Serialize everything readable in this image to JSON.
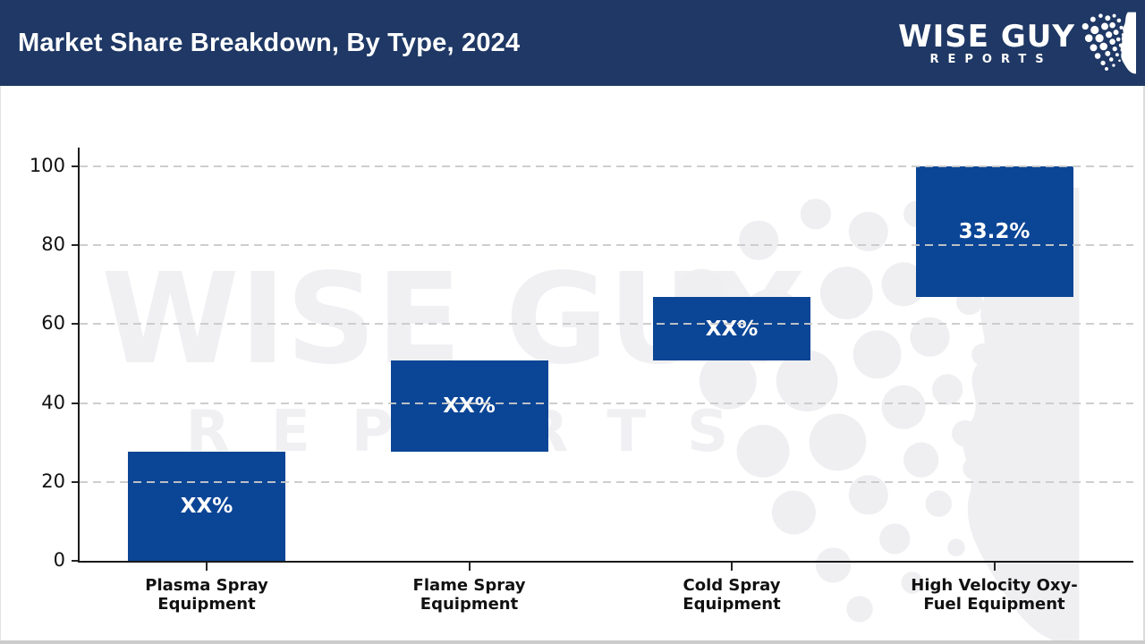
{
  "header": {
    "title": "Market Share Breakdown, By Type, 2024",
    "logo": {
      "line1": "WISE GUY",
      "line2": "REPORTS"
    }
  },
  "watermark": {
    "line1": "WISE GUY",
    "line2": "REPORTS"
  },
  "chart_data": {
    "type": "bar",
    "variant": "waterfall",
    "title": "Market Share Breakdown, By Type, 2024",
    "categories": [
      "Plasma Spray Equipment",
      "Flame Spray Equipment",
      "Cold Spray Equipment",
      "High Velocity Oxy-Fuel Equipment"
    ],
    "categories_display": [
      "Plasma Spray\nEquipment",
      "Flame Spray\nEquipment",
      "Cold Spray\nEquipment",
      "High Velocity Oxy-\nFuel Equipment"
    ],
    "segments": [
      {
        "label": "XX%",
        "start": 0,
        "end": 27.7,
        "value": 27.7
      },
      {
        "label": "XX%",
        "start": 27.7,
        "end": 50.7,
        "value": 23.0
      },
      {
        "label": "XX%",
        "start": 50.7,
        "end": 66.8,
        "value": 16.1
      },
      {
        "label": "33.2%",
        "start": 66.8,
        "end": 100,
        "value": 33.2
      }
    ],
    "xlabel": "",
    "ylabel": "",
    "yticks": [
      0,
      20,
      40,
      60,
      80,
      100
    ],
    "ylim": [
      0,
      105
    ],
    "grid": "horizontal-dashed",
    "legend": "none",
    "bar_color": "#0B4596",
    "bar_label_color": "#FFFFFF"
  },
  "colors": {
    "header_bg": "#1F3865",
    "bar": "#0B4596",
    "axis": "#1A1A1A",
    "grid": "#CACACA",
    "watermark": "#F0F0F3",
    "bottom_strip": "#CCCCCC"
  }
}
